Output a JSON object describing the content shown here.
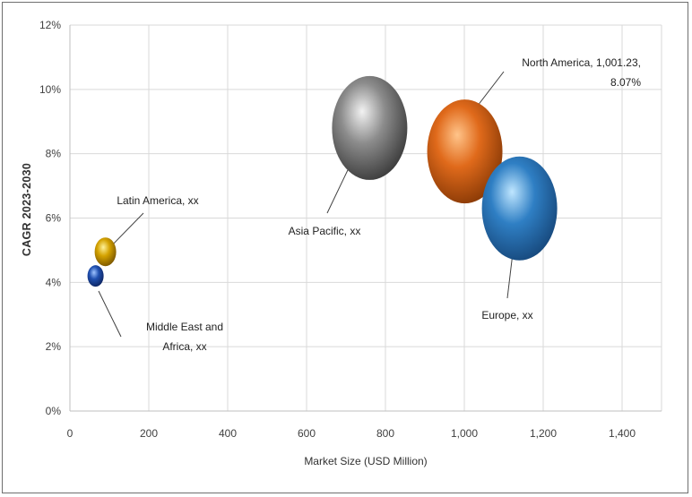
{
  "chart_data": {
    "type": "scatter",
    "subtype": "bubble",
    "title": "",
    "xlabel": "Market Size (USD Million)",
    "ylabel": "CAGR 2023-2030",
    "xlim": [
      0,
      1500
    ],
    "ylim": [
      0,
      12
    ],
    "x_ticks": [
      0,
      200,
      400,
      600,
      800,
      1000,
      1200,
      1400
    ],
    "x_tick_labels": [
      "0",
      "200",
      "400",
      "600",
      "800",
      "1,000",
      "1,200",
      "1,400"
    ],
    "y_ticks": [
      0,
      2,
      4,
      6,
      8,
      10,
      12
    ],
    "y_tick_labels": [
      "0%",
      "2%",
      "4%",
      "6%",
      "8%",
      "10%",
      "12%"
    ],
    "grid": true,
    "legend": "none",
    "points": [
      {
        "region": "North America",
        "label": [
          "North America, 1,001.23,",
          "8.07%"
        ],
        "x": 1001.23,
        "y": 8.07,
        "size": "large",
        "color": "#e06a1b",
        "highlight": "#ffc48a",
        "shade": "#8a3a06"
      },
      {
        "region": "Europe",
        "label": [
          "Europe, xx"
        ],
        "x": 1140,
        "y": 6.3,
        "size": "large",
        "color": "#2f7fc4",
        "highlight": "#bfe6ff",
        "shade": "#17497d"
      },
      {
        "region": "Asia Pacific",
        "label": [
          "Asia Pacific, xx"
        ],
        "x": 760,
        "y": 8.8,
        "size": "large",
        "color": "#8c8c8c",
        "highlight": "#f2f2f2",
        "shade": "#3c3c3c"
      },
      {
        "region": "Latin America",
        "label": [
          "Latin America, xx"
        ],
        "x": 90,
        "y": 4.95,
        "size": "small",
        "color": "#d4a200",
        "highlight": "#fff29a",
        "shade": "#7a5600"
      },
      {
        "region": "Middle East and Africa",
        "label": [
          "Middle East and",
          "Africa, xx"
        ],
        "x": 65,
        "y": 4.2,
        "size": "tiny",
        "color": "#2050b0",
        "highlight": "#9fc4ff",
        "shade": "#0d2460"
      }
    ]
  }
}
